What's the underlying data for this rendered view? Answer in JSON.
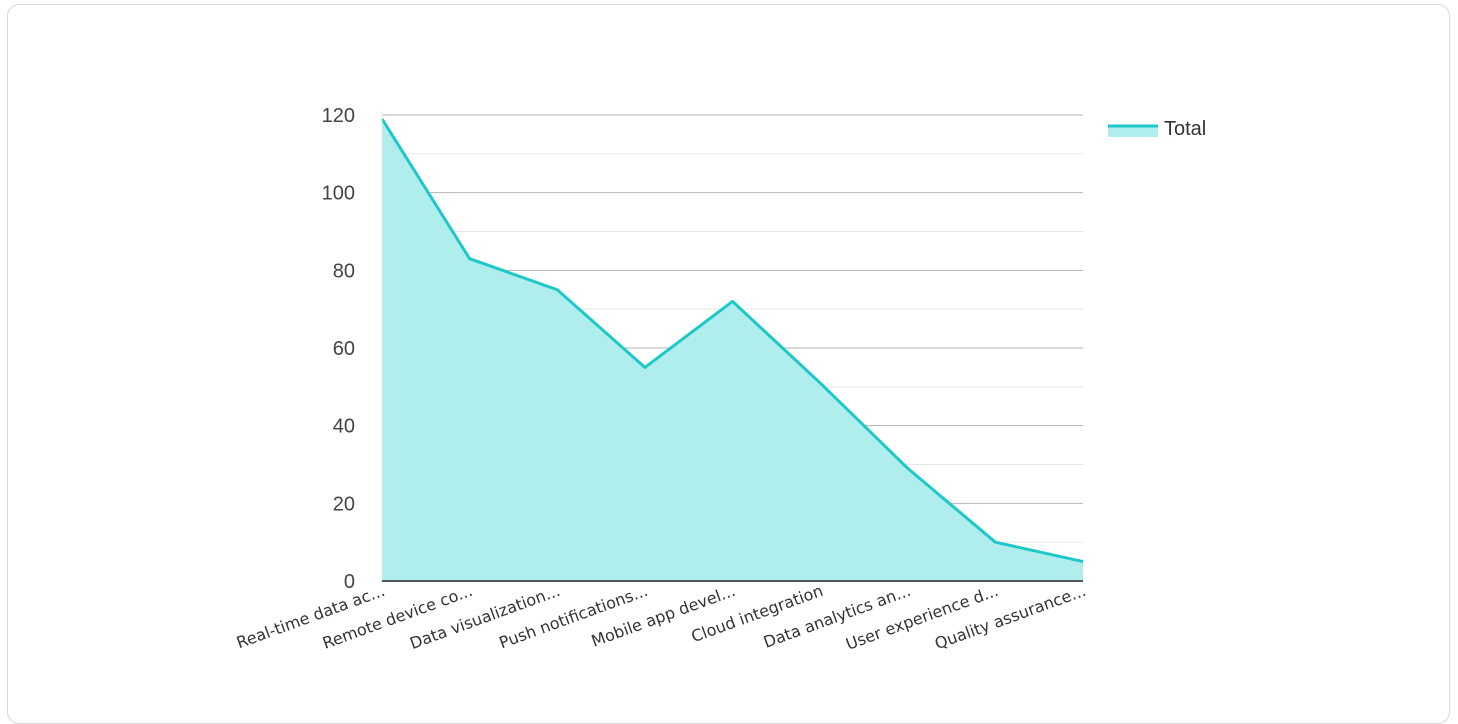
{
  "chart_data": {
    "type": "area",
    "categories": [
      "Real-time data ac...",
      "Remote device co...",
      "Data visualization...",
      "Push notifications...",
      "Mobile app devel...",
      "Cloud integration",
      "Data analytics an...",
      "User experience d...",
      "Quality assurance..."
    ],
    "series": [
      {
        "name": "Total",
        "values": [
          119,
          83,
          75,
          55,
          72,
          51,
          29,
          10,
          5
        ]
      }
    ],
    "ylim": [
      0,
      120
    ],
    "yticks": [
      0,
      20,
      40,
      60,
      80,
      100,
      120
    ],
    "grid": true,
    "legend": "top-right",
    "colors": {
      "line": "#1ec8c8",
      "fill": "#b0eeee",
      "grid_major": "#b4b4b4",
      "grid_minor": "#e6e6e6",
      "axis": "#222222"
    }
  }
}
